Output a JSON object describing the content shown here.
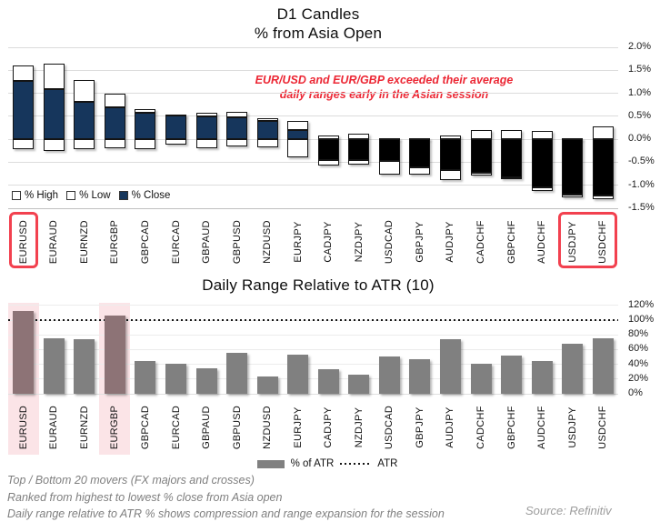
{
  "colors": {
    "close_up": "#16365C",
    "close_down": "#000000",
    "candle_border": "#141414",
    "bar": "#808080",
    "bar_highlight": "#8D7376",
    "highlight_box": "#F2414F",
    "pink_band": "#FBE4E7",
    "annotation": "#EC2734",
    "grid": "#DCDCDC",
    "axis_text": "#1A1A1A",
    "footer_text": "#7F7F7F",
    "source_text": "#9C9C9C"
  },
  "footer": {
    "line1": "Top / Bottom 20 movers (FX majors and crosses)",
    "line2": "Ranked from highest to lowest % close from Asia open",
    "line3": "Daily range relative to ATR % shows compression and range expansion for the session",
    "source": "Source: Refinitiv"
  },
  "chart_data": [
    {
      "type": "bar",
      "subtype": "stacked-candle",
      "title": "D1 Candles",
      "subtitle": "% from Asia Open",
      "annotation": {
        "line1": "EUR/USD and EUR/GBP exceeded their average",
        "line2": "daily ranges early in the Asian session"
      },
      "categories": [
        "EURUSD",
        "EURAUD",
        "EURNZD",
        "EURGBP",
        "GBPCAD",
        "EURCAD",
        "GBPAUD",
        "GBPUSD",
        "NZDUSD",
        "EURJPY",
        "CADJPY",
        "NZDJPY",
        "USDCAD",
        "GBPJPY",
        "AUDJPY",
        "CADCHF",
        "GBPCHF",
        "AUDCHF",
        "USDJPY",
        "USDCHF"
      ],
      "series": [
        {
          "name": "% High",
          "values": [
            1.6,
            1.64,
            1.29,
            0.99,
            0.66,
            0.54,
            0.57,
            0.59,
            0.45,
            0.4,
            0.09,
            0.12,
            0.03,
            0.03,
            0.08,
            0.2,
            0.21,
            0.19,
            0.02,
            0.28
          ]
        },
        {
          "name": "% Low",
          "values": [
            -0.21,
            -0.26,
            -0.21,
            -0.19,
            -0.21,
            -0.11,
            -0.19,
            -0.16,
            -0.17,
            -0.39,
            -0.58,
            -0.55,
            -0.77,
            -0.77,
            -0.89,
            -0.78,
            -0.87,
            -1.13,
            -1.27,
            -1.3
          ]
        },
        {
          "name": "% Close",
          "values": [
            1.27,
            1.09,
            0.82,
            0.7,
            0.58,
            0.52,
            0.5,
            0.48,
            0.4,
            0.2,
            -0.45,
            -0.46,
            -0.48,
            -0.62,
            -0.66,
            -0.72,
            -0.82,
            -1.05,
            -1.2,
            -1.22
          ]
        }
      ],
      "ylim": [
        -1.5,
        2.0
      ],
      "yticks": [
        "2.0%",
        "1.5%",
        "1.0%",
        "0.5%",
        "0.0%",
        "-0.5%",
        "-1.0%",
        "-1.5%"
      ],
      "ytick_values": [
        2.0,
        1.5,
        1.0,
        0.5,
        0.0,
        -0.5,
        -1.0,
        -1.5
      ],
      "y_axis_side": "right",
      "grid": true,
      "legend_position": "inside-bottom-left",
      "highlight_boxes": [
        [
          "EURUSD"
        ],
        [
          "USDJPY",
          "USDCHF"
        ]
      ]
    },
    {
      "type": "bar",
      "title": "Daily Range Relative to ATR (10)",
      "categories": [
        "EURUSD",
        "EURAUD",
        "EURNZD",
        "EURGBP",
        "GBPCAD",
        "EURCAD",
        "GBPAUD",
        "GBPUSD",
        "NZDUSD",
        "EURJPY",
        "CADJPY",
        "NZDJPY",
        "USDCAD",
        "GBPJPY",
        "AUDJPY",
        "CADCHF",
        "GBPCHF",
        "AUDCHF",
        "USDJPY",
        "USDCHF"
      ],
      "values": [
        112,
        75,
        74,
        106,
        44,
        41,
        34,
        55,
        24,
        53,
        33,
        26,
        51,
        47,
        74,
        41,
        52,
        44,
        68,
        75
      ],
      "unit": "%",
      "ylim": [
        0,
        120
      ],
      "yticks": [
        "120%",
        "100%",
        "80%",
        "60%",
        "40%",
        "20%",
        "0%"
      ],
      "ytick_values": [
        120,
        100,
        80,
        60,
        40,
        20,
        0
      ],
      "y_axis_side": "right",
      "reference_line": {
        "name": "ATR",
        "value": 100,
        "style": "dotted"
      },
      "legend": {
        "bar_label": "% of ATR",
        "line_label": "ATR"
      },
      "highlighted_categories": [
        "EURUSD",
        "EURGBP"
      ]
    }
  ]
}
